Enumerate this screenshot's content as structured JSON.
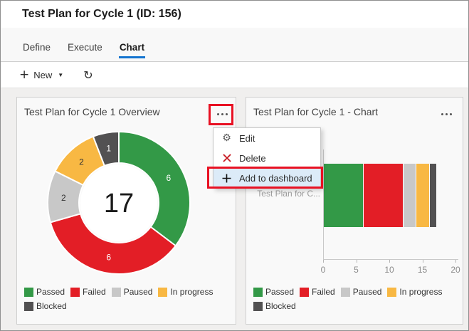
{
  "window": {
    "title": "Test Plan for Cycle 1 (ID: 156)"
  },
  "tabs": [
    {
      "label": "Define",
      "active": false
    },
    {
      "label": "Execute",
      "active": false
    },
    {
      "label": "Chart",
      "active": true
    }
  ],
  "toolbar": {
    "new_label": "New",
    "new_icon": "plus-icon",
    "dropdown_icon": "chevron-down-icon",
    "refresh_icon": "refresh-icon"
  },
  "context_menu": {
    "items": [
      {
        "icon": "gear-icon",
        "label": "Edit",
        "highlighted": false
      },
      {
        "icon": "delete-x-icon",
        "label": "Delete",
        "highlighted": false
      },
      {
        "icon": "plus-icon",
        "label": "Add to dashboard",
        "highlighted": true
      }
    ]
  },
  "colors": {
    "accent_blue": "#1374cf",
    "passed_green": "#339947",
    "failed_red": "#e31e26",
    "paused_gray": "#c8c8c8",
    "in_progress_yellow": "#f8b843",
    "blocked_dark": "#525152",
    "annotation_red": "#e81123",
    "menu_highlight": "#dcebf8",
    "delete_x_red": "#c6171f"
  },
  "chart_data": [
    {
      "type": "pie",
      "subtype": "donut",
      "title": "Test Plan for Cycle 1 Overview",
      "center_total": "17",
      "slices": [
        {
          "label": "Passed",
          "value": 6,
          "color": "#339947",
          "label_color": "#ffffff"
        },
        {
          "label": "Failed",
          "value": 6,
          "color": "#e31e26",
          "label_color": "#ffffff"
        },
        {
          "label": "Paused",
          "value": 2,
          "color": "#c8c8c8",
          "label_color": "#333333"
        },
        {
          "label": "In progress",
          "value": 2,
          "color": "#f8b843",
          "label_color": "#333333"
        },
        {
          "label": "Blocked",
          "value": 1,
          "color": "#525152",
          "label_color": "#ffffff"
        }
      ],
      "legend_position": "bottom"
    },
    {
      "type": "bar",
      "orientation": "horizontal",
      "stacked": true,
      "title": "Test Plan for Cycle 1 - Chart",
      "categories": [
        "Test Plan for C..."
      ],
      "series": [
        {
          "name": "Passed",
          "values": [
            6
          ],
          "color": "#339947"
        },
        {
          "name": "Failed",
          "values": [
            6
          ],
          "color": "#e31e26"
        },
        {
          "name": "Paused",
          "values": [
            2
          ],
          "color": "#c8c8c8"
        },
        {
          "name": "In progress",
          "values": [
            2
          ],
          "color": "#f8b843"
        },
        {
          "name": "Blocked",
          "values": [
            1
          ],
          "color": "#525152"
        }
      ],
      "xlim": [
        0,
        20
      ],
      "xticks": [
        0,
        5,
        10,
        15,
        20
      ],
      "grid": false,
      "legend_position": "bottom"
    }
  ]
}
